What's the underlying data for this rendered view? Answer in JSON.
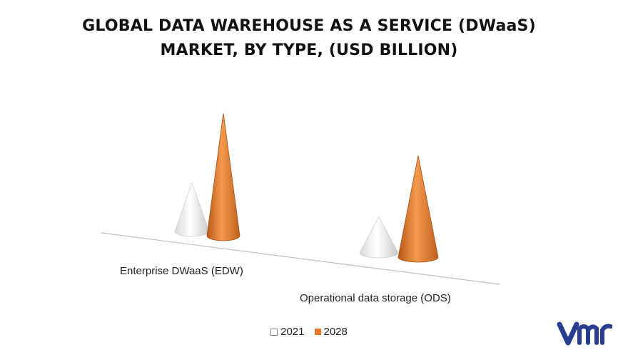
{
  "title_line1": "GLOBAL DATA WAREHOUSE AS A SERVICE (DWaaS)",
  "title_line2": "MARKET, BY TYPE, (USD BILLION)",
  "logo_text": "vmr",
  "colors": {
    "series_2021": "#f2f2f2",
    "series_2028": "#e8782a",
    "floor_line": "#bfbfbf"
  },
  "chart_data": {
    "type": "bar",
    "style": "3d-cone",
    "title": "GLOBAL DATA WAREHOUSE AS A SERVICE (DWaaS) MARKET, BY TYPE, (USD BILLION)",
    "categories": [
      "Enterprise DWaaS (EDW)",
      "Operational data storage (ODS)"
    ],
    "series": [
      {
        "name": "2021",
        "values": [
          3.5,
          2.6
        ]
      },
      {
        "name": "2028",
        "values": [
          8.8,
          7.3
        ]
      }
    ],
    "ylim": [
      0,
      10
    ],
    "grid": false,
    "legend": "bottom-center"
  }
}
